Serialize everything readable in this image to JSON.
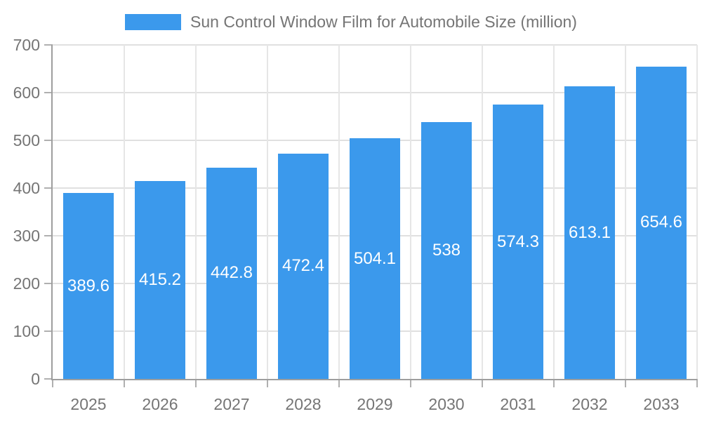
{
  "legend": {
    "label": "Sun Control Window Film for Automobile Size (million)"
  },
  "chart_data": {
    "type": "bar",
    "title": "Sun Control Window Film for Automobile Size (million)",
    "categories": [
      "2025",
      "2026",
      "2027",
      "2028",
      "2029",
      "2030",
      "2031",
      "2032",
      "2033"
    ],
    "values": [
      389.6,
      415.2,
      442.8,
      472.4,
      504.1,
      538,
      574.3,
      613.1,
      654.6
    ],
    "value_labels": [
      "389.6",
      "415.2",
      "442.8",
      "472.4",
      "504.1",
      "538",
      "574.3",
      "613.1",
      "654.6"
    ],
    "xlabel": "",
    "ylabel": "",
    "ylim": [
      0,
      700
    ],
    "yticks": [
      0,
      100,
      200,
      300,
      400,
      500,
      600,
      700
    ],
    "grid": true,
    "legend_position": "top-center"
  },
  "colors": {
    "bar": "#3B99EC",
    "bar_label": "#FFFFFF",
    "axis_text": "#757575",
    "axis_line": "#9E9E9E",
    "grid_horizontal": "#E0E0E0",
    "grid_vertical": "#E6E6E6",
    "tick": "#B0B0B0",
    "background": "#FFFFFF"
  }
}
